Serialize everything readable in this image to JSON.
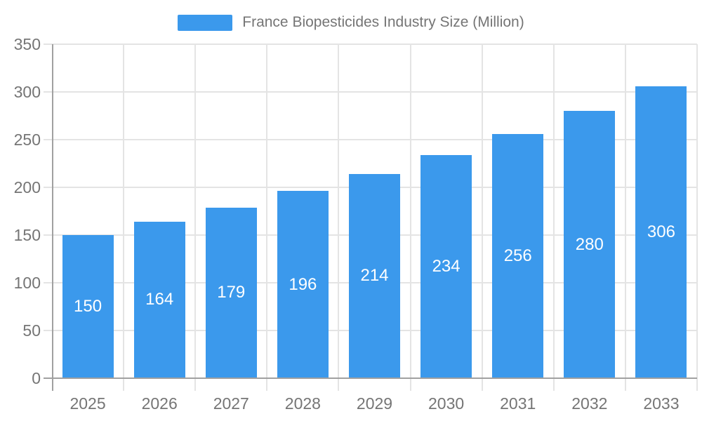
{
  "chart_data": {
    "type": "bar",
    "title": "France Biopesticides Industry Size (Million)",
    "legend_position": "top",
    "categories": [
      "2025",
      "2026",
      "2027",
      "2028",
      "2029",
      "2030",
      "2031",
      "2032",
      "2033"
    ],
    "values": [
      150,
      164,
      179,
      196,
      214,
      234,
      256,
      280,
      306
    ],
    "series": [
      {
        "name": "France Biopesticides Industry Size (Million)",
        "values": [
          150,
          164,
          179,
          196,
          214,
          234,
          256,
          280,
          306
        ]
      }
    ],
    "xlabel": "",
    "ylabel": "",
    "ylim": [
      0,
      350
    ],
    "yticks": [
      0,
      50,
      100,
      150,
      200,
      250,
      300,
      350
    ],
    "grid": true,
    "value_label_position": "inside-center",
    "colors": {
      "bar": "#3B99EC",
      "grid": "#E4E4E4",
      "axis": "#A0A0A0",
      "tick_label": "#757575",
      "value_label": "#FFFFFF",
      "background": "#FFFFFF"
    }
  }
}
